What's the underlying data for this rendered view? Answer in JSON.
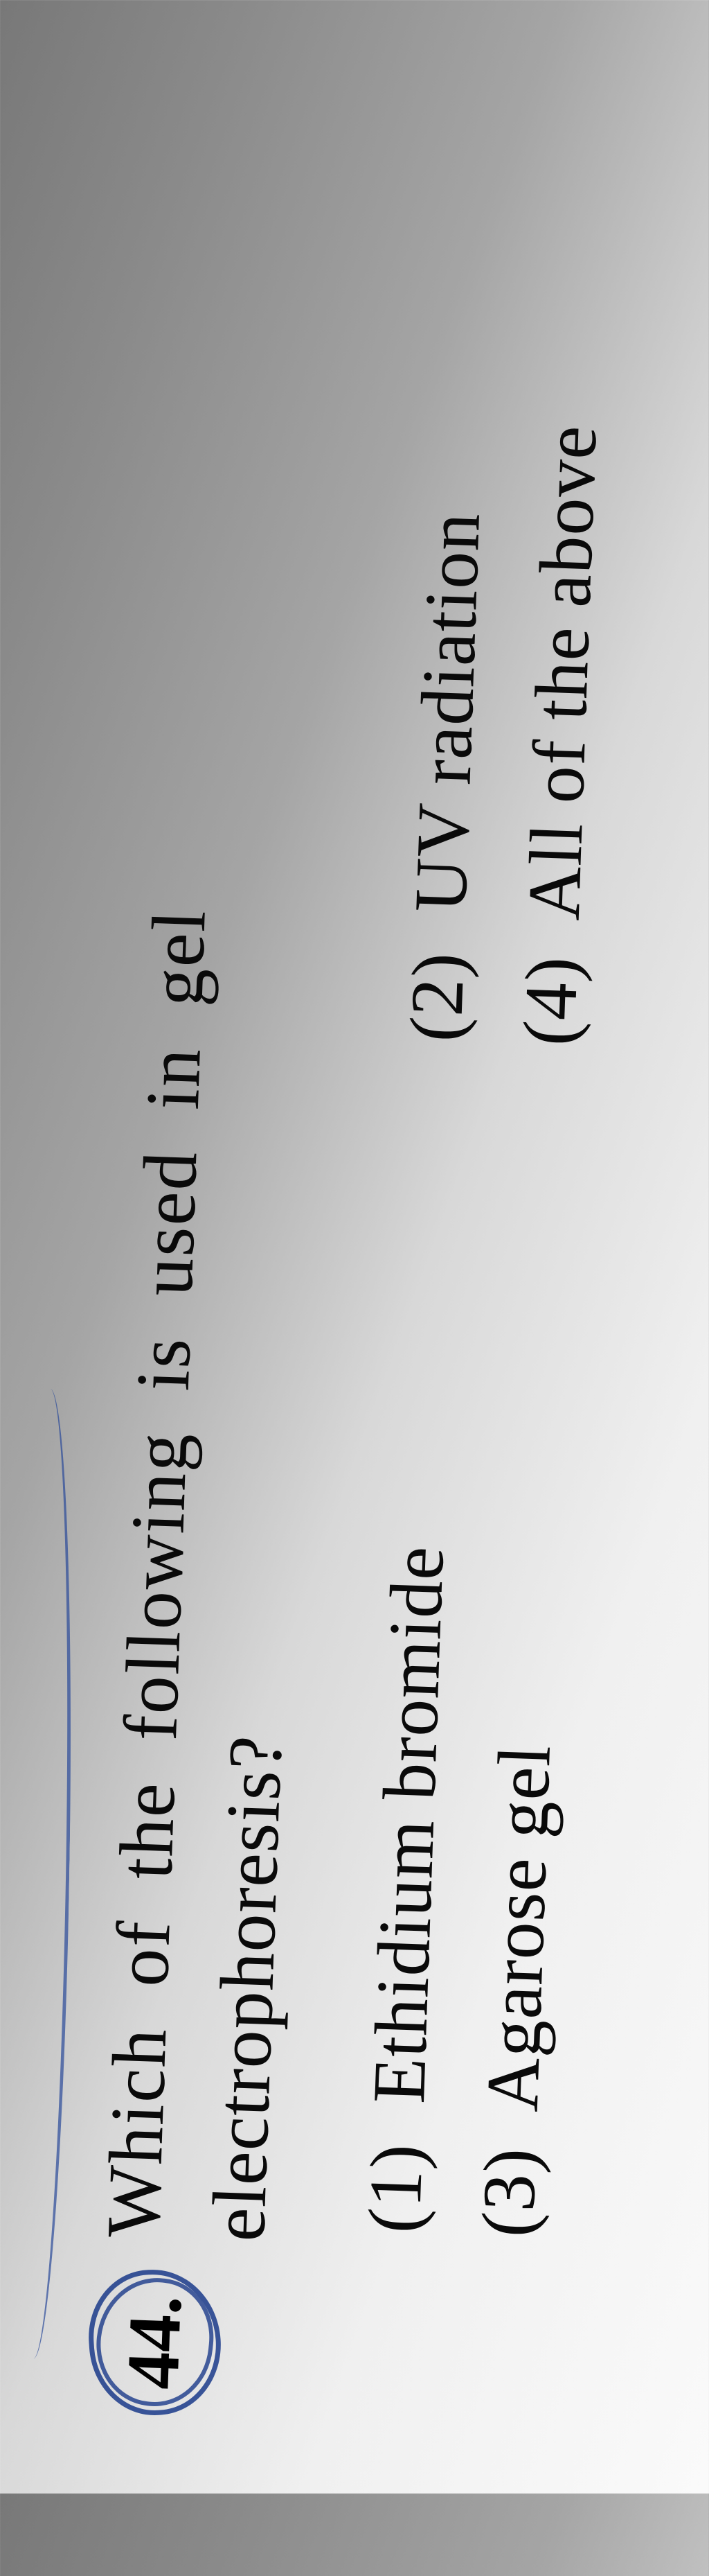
{
  "question": {
    "number": "44.",
    "line1": "Which of the following is used in gel",
    "line2": "electrophoresis?"
  },
  "options": {
    "opt1": {
      "label": "(1)",
      "text": "Ethidium bromide"
    },
    "opt2": {
      "label": "(2)",
      "text": "UV radiation"
    },
    "opt3": {
      "label": "(3)",
      "text": "Agarose gel"
    },
    "opt4": {
      "label": "(4)",
      "text": "All of the above"
    }
  },
  "annotation": {
    "circle_color": "#1a3a8a",
    "underline_color": "#2a4a9a"
  },
  "styling": {
    "font_family": "Georgia, Times New Roman, serif",
    "text_color": "#0a0a0a",
    "question_fontsize": 110,
    "option_fontsize": 108,
    "number_fontsize": 108,
    "rotation_deg": -88,
    "background_gradient": [
      "#787878",
      "#fafafa"
    ]
  }
}
